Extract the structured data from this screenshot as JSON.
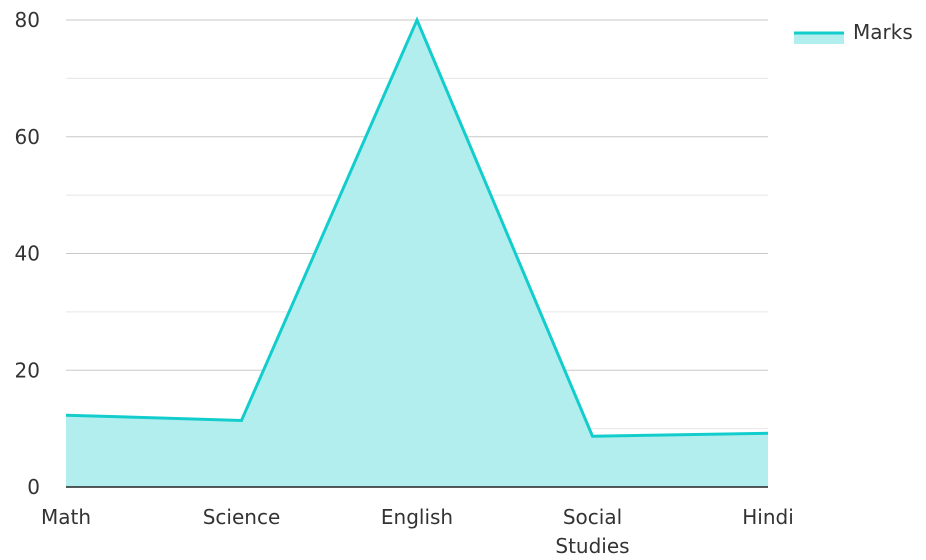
{
  "chart_data": {
    "type": "area",
    "categories": [
      "Math",
      "Science",
      "English",
      "Social Studies",
      "Hindi"
    ],
    "category_lines": [
      [
        "Math"
      ],
      [
        "Science"
      ],
      [
        "English"
      ],
      [
        "Social",
        "Studies"
      ],
      [
        "Hindi"
      ]
    ],
    "series": [
      {
        "name": "Marks",
        "values": [
          12.3,
          11.4,
          80,
          8.7,
          9.2
        ],
        "color": "#13cdcd",
        "fill": "#b3eeee"
      }
    ],
    "ylim": [
      0,
      80
    ],
    "y_ticks": [
      0,
      20,
      40,
      60,
      80
    ],
    "y_tick_labels": [
      "0",
      "20",
      "40",
      "60",
      "80"
    ],
    "grid": true,
    "legend": "top-right",
    "axis_color": "#222222",
    "major_grid_color": "#c8c8c8",
    "minor_grid_color": "#e6e6e6"
  }
}
